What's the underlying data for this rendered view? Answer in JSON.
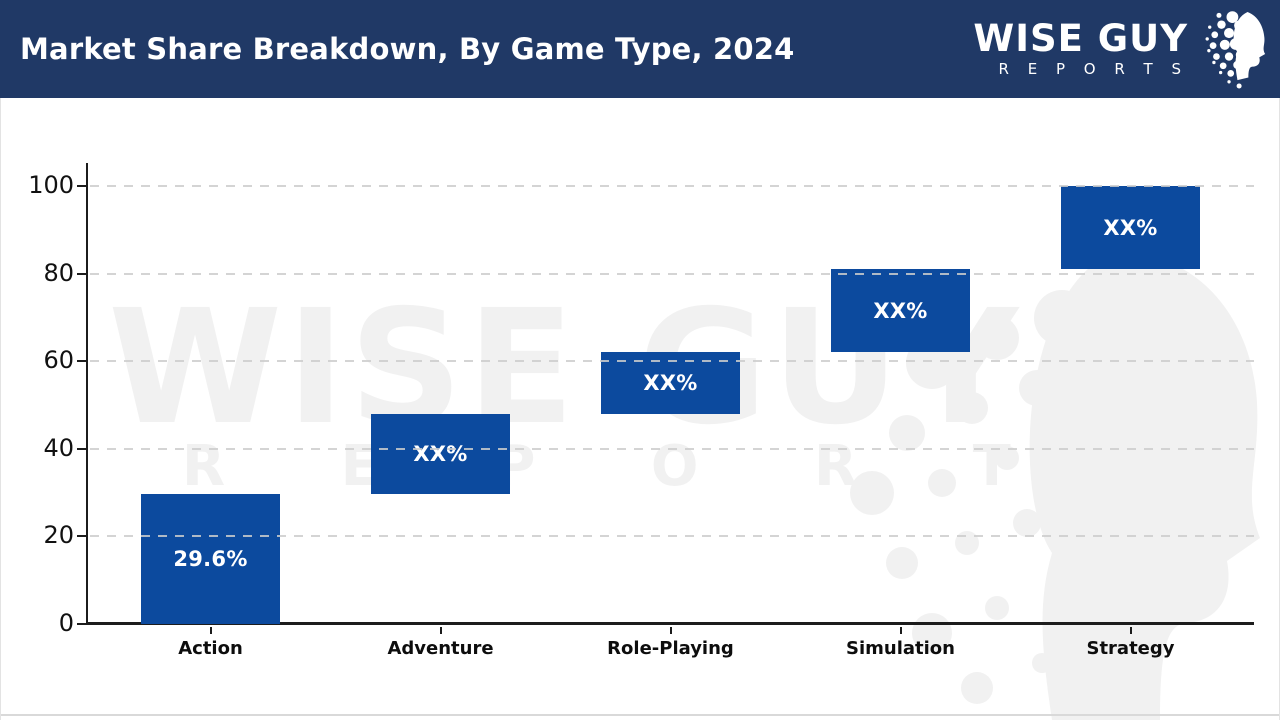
{
  "header": {
    "title": "Market Share Breakdown, By Game Type, 2024",
    "logo": {
      "line1": "WISE GUY",
      "line2": "R E P O R T S"
    }
  },
  "watermark": {
    "line1": "WISE GUY",
    "line2": "R E P O R T S"
  },
  "colors": {
    "header_bg": "#203966",
    "bar": "#0c4a9e",
    "bar_label": "#ffffff",
    "gridline": "#d4d4d4",
    "axis": "#1c1c1c",
    "tick_label": "#111111",
    "watermark": "#f1f1f1",
    "logo_text": "#ffffff"
  },
  "chart_data": {
    "type": "bar",
    "subtype": "waterfall-floating-bars",
    "title": "Market Share Breakdown, By Game Type, 2024",
    "xlabel": "",
    "ylabel": "",
    "categories": [
      "Action",
      "Adventure",
      "Role-Playing",
      "Simulation",
      "Strategy"
    ],
    "series": [
      {
        "name": "Market share (%)",
        "segments": [
          {
            "category": "Action",
            "start": 0,
            "end": 29.6,
            "label": "29.6%"
          },
          {
            "category": "Adventure",
            "start": 29.6,
            "end": 48,
            "label": "XX%"
          },
          {
            "category": "Role-Playing",
            "start": 48,
            "end": 62,
            "label": "XX%"
          },
          {
            "category": "Simulation",
            "start": 62,
            "end": 81,
            "label": "XX%"
          },
          {
            "category": "Strategy",
            "start": 81,
            "end": 100,
            "label": "XX%"
          }
        ]
      }
    ],
    "ylim": [
      0,
      100
    ],
    "yticks": [
      0,
      20,
      40,
      60,
      80,
      100
    ],
    "grid": "horizontal dashed, drawn over bars",
    "legend": "none"
  }
}
